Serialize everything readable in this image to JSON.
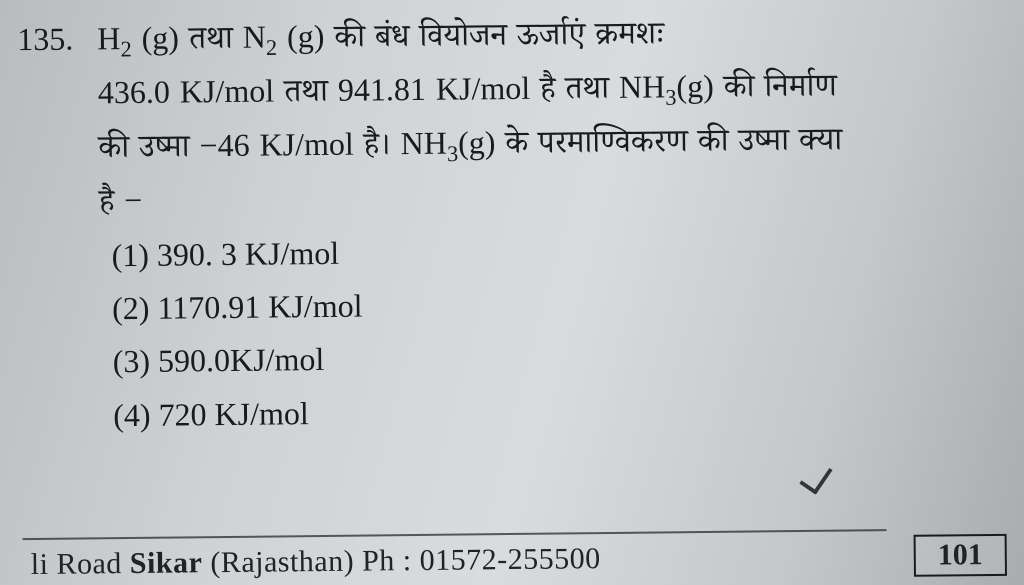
{
  "question": {
    "number": "135.",
    "line1_html": "H<sub>2</sub> (g) तथा N<sub>2</sub> (g) की बंध वियोजन ऊर्जाएं क्रमशः",
    "line2_html": "436.0 KJ/mol तथा 941.81 KJ/mol है तथा NH<sub>3</sub>(g) की निर्माण",
    "line3_html": "की उष्मा −46 KJ/mol है। NH<sub>3</sub>(g) के परमाण्विकरण की उष्मा क्या",
    "line4_html": "है −"
  },
  "options": [
    "(1) 390. 3 KJ/mol",
    "(2) 1170.91 KJ/mol",
    "(3) 590.0KJ/mol",
    "(4) 720 KJ/mol"
  ],
  "footer": {
    "address": "li Road Sikar (Rajasthan) Ph : 01572-255500",
    "page": "101"
  }
}
